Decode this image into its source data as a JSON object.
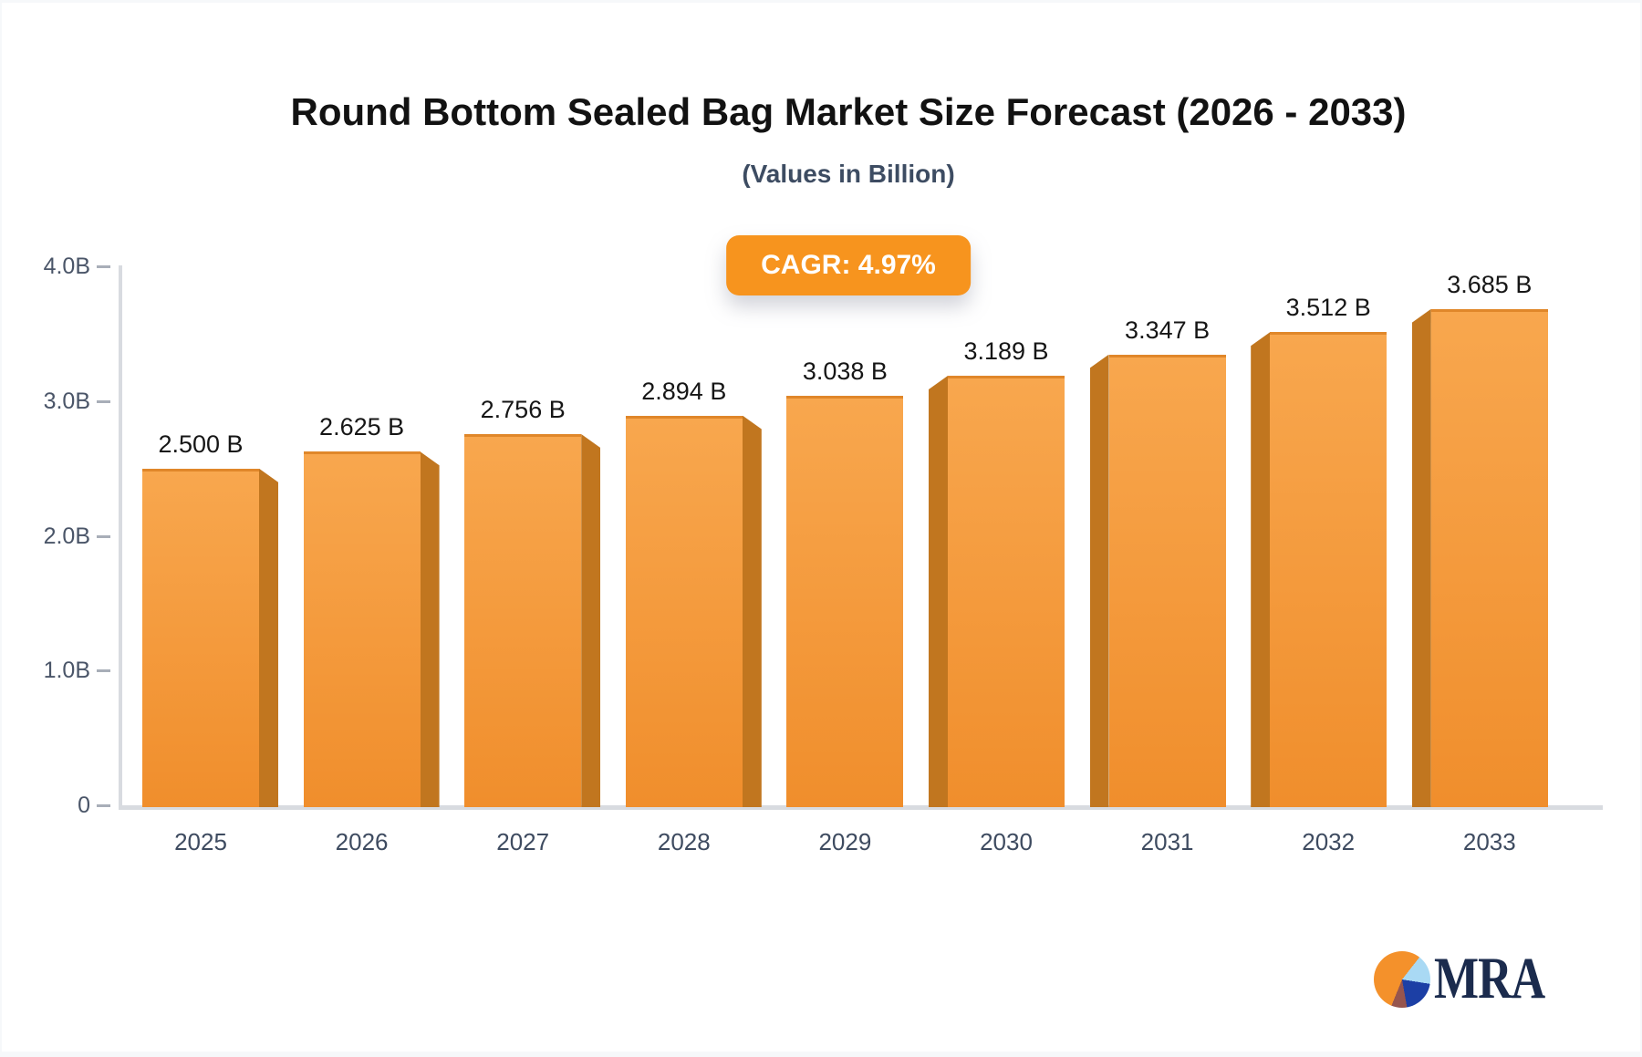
{
  "title": "Round Bottom Sealed Bag Market Size Forecast (2026 - 2033)",
  "subtitle": "(Values in Billion)",
  "cagr_badge": "CAGR: 4.97%",
  "logo": {
    "text": "MRA",
    "icon": "pie-chart-icon"
  },
  "colors": {
    "accent_orange": "#F7941E",
    "logo_pie_orange": "#F4912B",
    "bar_front_top": "#F8A74E",
    "bar_front_bottom": "#F08E2C",
    "bar_top_edge": "#E0872A",
    "bar_side": "#C1761F",
    "axis_gray": "#D8DBE0",
    "tick_gray": "#A8AEB8",
    "axis_text": "#4A5568",
    "year_text": "#3E4B60",
    "value_text": "#161616",
    "title_text": "#121212",
    "subtitle_text": "#3D4C62",
    "logo_navy": "#1B2B4D",
    "pie_lightblue": "#A9D9F4",
    "pie_royal": "#1C3FA5",
    "pie_maroon": "#96554E"
  },
  "chart_data": {
    "type": "bar",
    "title": "Round Bottom Sealed Bag Market Size Forecast (2026 - 2033)",
    "subtitle": "(Values in Billion)",
    "annotations": [
      "CAGR: 4.97%"
    ],
    "categories": [
      "2025",
      "2026",
      "2027",
      "2028",
      "2029",
      "2030",
      "2031",
      "2032",
      "2033"
    ],
    "values": [
      2.5,
      2.625,
      2.756,
      2.894,
      3.038,
      3.189,
      3.347,
      3.512,
      3.685
    ],
    "value_labels": [
      "2.500 B",
      "2.625 B",
      "2.756 B",
      "2.894 B",
      "3.038 B",
      "3.189 B",
      "3.347 B",
      "3.512 B",
      "3.685 B"
    ],
    "xlabel": "",
    "ylabel": "",
    "ylim": [
      0,
      4
    ],
    "y_ticks": [
      {
        "label": "0",
        "value": 0
      },
      {
        "label": "1.0B",
        "value": 1
      },
      {
        "label": "2.0B",
        "value": 2
      },
      {
        "label": "3.0B",
        "value": 3
      },
      {
        "label": "4.0B",
        "value": 4
      }
    ],
    "grid": false,
    "legend": false,
    "bar_style": "3d-perspective-orange"
  }
}
